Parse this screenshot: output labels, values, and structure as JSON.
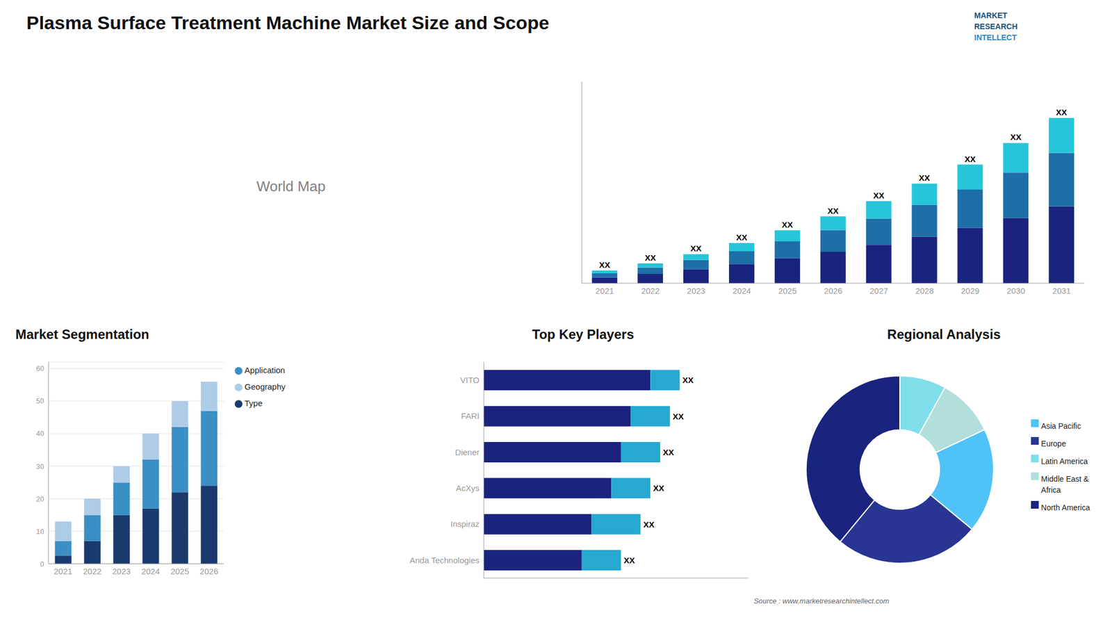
{
  "chart_data": [
    {
      "type": "bar",
      "title": "Plasma Surface Treatment Machine Market Size and Scope",
      "categories": [
        "2021",
        "2022",
        "2023",
        "2024",
        "2025",
        "2026",
        "2027",
        "2028",
        "2029",
        "2030",
        "2031"
      ],
      "series": [
        {
          "color": "#1a237e",
          "values": [
            1.0,
            1.6,
            2.4,
            3.3,
            4.3,
            5.4,
            6.6,
            8.0,
            9.5,
            11.2,
            13.2
          ]
        },
        {
          "color": "#1e6ea8",
          "values": [
            0.7,
            1.1,
            1.6,
            2.2,
            2.9,
            3.7,
            4.5,
            5.5,
            6.6,
            7.8,
            9.2
          ]
        },
        {
          "color": "#26c6da",
          "values": [
            0.5,
            0.7,
            1.0,
            1.4,
            1.9,
            2.4,
            3.0,
            3.6,
            4.3,
            5.1,
            6.0
          ],
          "value_labels": [
            "XX",
            "XX",
            "XX",
            "XX",
            "XX",
            "XX",
            "XX",
            "XX",
            "XX",
            "XX",
            "XX"
          ]
        }
      ],
      "stacked": true,
      "ylim": [
        0,
        34.648
      ],
      "yticks": [],
      "tick_labels": "x",
      "grid": false,
      "annotations": [
        "World Map",
        "MARKET",
        "RESEARCH",
        "INTELLECT",
        "Source : www.marketresearchintellect.com"
      ]
    },
    {
      "type": "bar",
      "title": "Market Segmentation",
      "categories": [
        "2021",
        "2022",
        "2023",
        "2024",
        "2025",
        "2026"
      ],
      "series": [
        {
          "name": "Type",
          "color": "#1a3a6e",
          "values": [
            2.5,
            7,
            15,
            17,
            22,
            24
          ]
        },
        {
          "name": "Application",
          "color": "#3a8fc4",
          "values": [
            4.5,
            8,
            10,
            15,
            20,
            23
          ]
        },
        {
          "name": "Geography",
          "color": "#aecce8",
          "values": [
            6,
            5,
            5,
            8,
            8,
            9
          ]
        }
      ],
      "stacked": true,
      "ylim": [
        0,
        62
      ],
      "yticks": [
        0,
        10,
        20,
        30,
        40,
        50,
        60
      ],
      "grid": true,
      "legend": "upper right"
    },
    {
      "type": "bar",
      "orientation": "horizontal",
      "title": "Top Key Players",
      "categories": [
        "VITO",
        "FARI",
        "Diener",
        "AcXys",
        "Inspiraz",
        "Anda Technologies"
      ],
      "series": [
        {
          "color": "#1a237e",
          "values": [
            8.5,
            7.5,
            7.0,
            6.5,
            5.5,
            5.0
          ]
        },
        {
          "color": "#26a9d0",
          "values": [
            1.5,
            2.0,
            2.0,
            2.0,
            2.5,
            2.0
          ],
          "value_labels": [
            "XX",
            "XX",
            "XX",
            "XX",
            "XX",
            "XX"
          ]
        }
      ],
      "stacked": true,
      "xlim": [
        0,
        13.5
      ],
      "xticks": [],
      "tick_labels": "y",
      "grid": false
    },
    {
      "type": "pie",
      "title": "Regional Analysis",
      "categories": [
        "Latin America",
        "Middle East &\nAfrica",
        "Asia Pacific",
        "Europe",
        "North America"
      ],
      "values": [
        8,
        10,
        18,
        25,
        39
      ],
      "colors": [
        "#80deea",
        "#b2dfdb",
        "#4fc3f7",
        "#283593",
        "#1a237e"
      ],
      "legend": "right"
    }
  ]
}
